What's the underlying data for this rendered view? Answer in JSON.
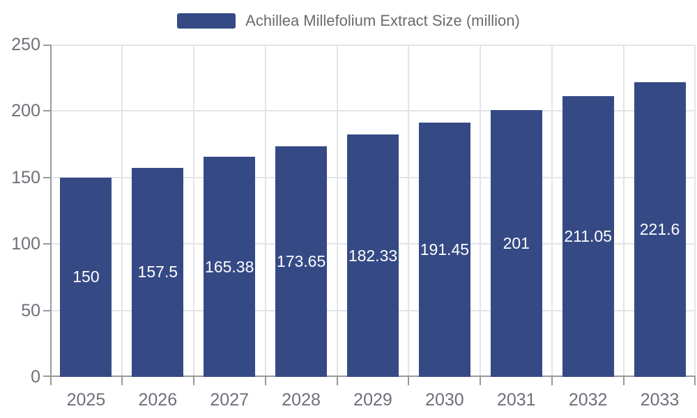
{
  "legend": {
    "label": "Achillea Millefolium Extract Size (million)"
  },
  "chart_data": {
    "type": "bar",
    "title": "Achillea Millefolium Extract Size (million)",
    "series_name": "Achillea Millefolium Extract Size (million)",
    "categories": [
      "2025",
      "2026",
      "2027",
      "2028",
      "2029",
      "2030",
      "2031",
      "2032",
      "2033"
    ],
    "values": [
      150,
      157.5,
      165.38,
      173.65,
      182.33,
      191.45,
      201,
      211.05,
      221.6
    ],
    "xlabel": "",
    "ylabel": "",
    "ylim": [
      0,
      250
    ],
    "yticks": [
      0,
      50,
      100,
      150,
      200,
      250
    ],
    "grid": true,
    "legend_position": "top"
  },
  "colors": {
    "bar": "#354a85",
    "grid": "#e3e4e8",
    "axis": "#999999",
    "tick_text": "#6e7079",
    "legend_text": "#6b6b6b",
    "bar_label": "#ffffff",
    "background": "#ffffff"
  }
}
